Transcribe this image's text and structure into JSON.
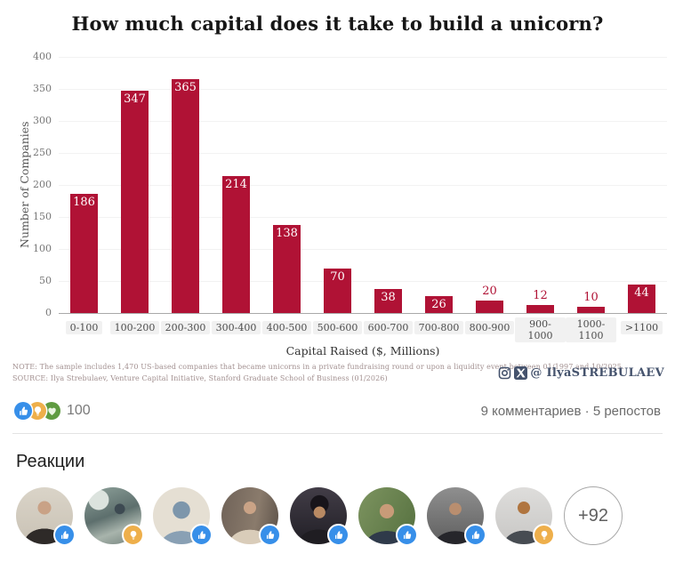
{
  "chart_data": {
    "type": "bar",
    "title": "How much capital does it take to build a unicorn?",
    "categories": [
      "0-100",
      "100-200",
      "200-300",
      "300-400",
      "400-500",
      "500-600",
      "600-700",
      "700-800",
      "800-900",
      "900-1000",
      "1000-1100",
      ">1100"
    ],
    "values": [
      186,
      347,
      365,
      214,
      138,
      70,
      38,
      26,
      20,
      12,
      10,
      44
    ],
    "xlabel": "Capital Raised ($, Millions)",
    "ylabel": "Number of Companies",
    "ylim": [
      0,
      400
    ],
    "ytick_step": 50,
    "grid": true,
    "legend": "none",
    "bar_color": "#b01235",
    "note": "NOTE: The sample includes 1,470 US-based companies that became unicorns in a private fundraising round or upon a liquidity event between 01/1997 and 10/2025.",
    "source": "SOURCE: Ilya Strebulaev, Venture Capital Initiative, Stanford Graduate School of Business (01/2026)",
    "handle": "@ IlyaSTREBULAEV"
  },
  "engagement": {
    "reaction_icons": [
      "like",
      "insightful",
      "support"
    ],
    "reactions_count": "100",
    "comments_reposts": "9 комментариев · 5 репостов"
  },
  "reactions_section": {
    "heading": "Реакции",
    "more_badge": "+92",
    "avatars": [
      {
        "badge": "like"
      },
      {
        "badge": "insightful"
      },
      {
        "badge": "like"
      },
      {
        "badge": "like"
      },
      {
        "badge": "like"
      },
      {
        "badge": "like"
      },
      {
        "badge": "like"
      },
      {
        "badge": "insightful"
      }
    ]
  },
  "colors": {
    "bar": "#b01235",
    "like_blue": "#378fe9",
    "insightful_amber": "#eeaf4b",
    "support_green": "#5f9b41",
    "handle_navy": "#45536d"
  }
}
